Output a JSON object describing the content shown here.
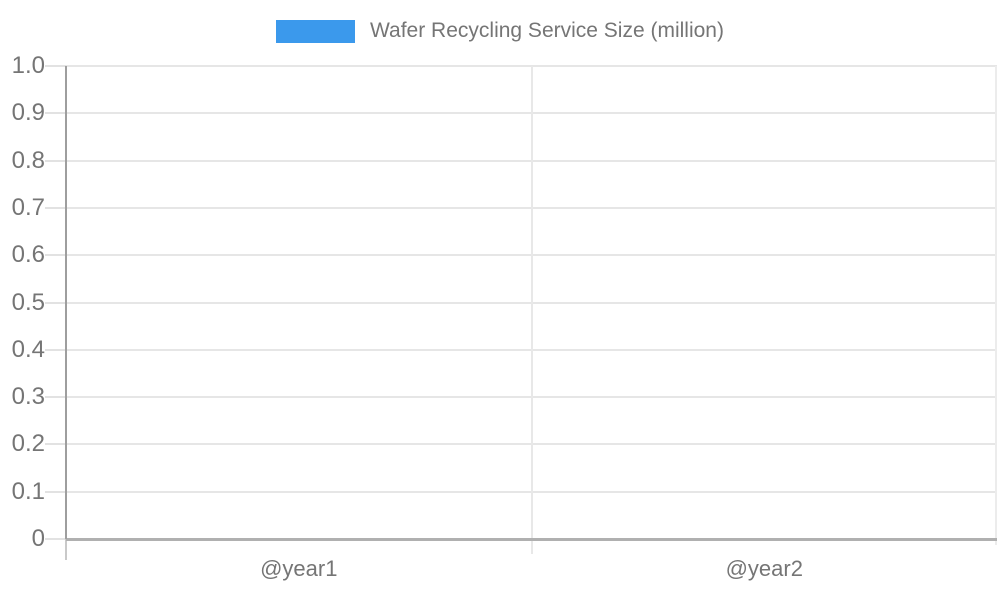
{
  "legend": {
    "label": "Wafer Recycling Service Size (million)",
    "swatch_color": "#3b99ec"
  },
  "colors": {
    "text": "#757575",
    "gridline": "#e6e6e6",
    "baseline": "#b0b0b0",
    "y_axis": "#9e9e9e",
    "background": "#ffffff",
    "series_blue": "#3b99ec"
  },
  "chart_data": {
    "type": "bar",
    "title": "Wafer Recycling Service Size (million)",
    "categories": [
      "@year1",
      "@year2"
    ],
    "series": [
      {
        "name": "Wafer Recycling Service Size (million)",
        "color": "#3b99ec",
        "values": [
          null,
          null
        ]
      }
    ],
    "xlabel": "",
    "ylabel": "",
    "ylim": [
      0,
      1.0
    ],
    "yticks": [
      0,
      0.1,
      0.2,
      0.3,
      0.4,
      0.5,
      0.6,
      0.7,
      0.8,
      0.9,
      1.0
    ],
    "ytick_labels": [
      "0",
      "0.1",
      "0.2",
      "0.3",
      "0.4",
      "0.5",
      "0.6",
      "0.7",
      "0.8",
      "0.9",
      "1.0"
    ],
    "legend_position": "top",
    "grid": true,
    "bars_rendered": false
  }
}
